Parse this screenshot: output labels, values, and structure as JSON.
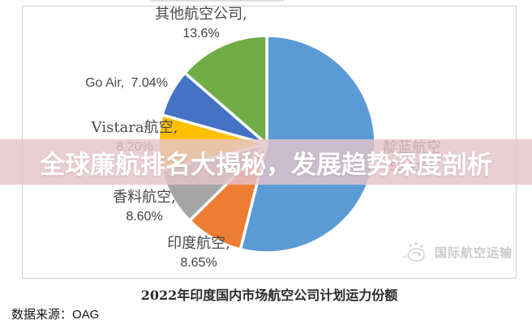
{
  "banner": {
    "text": "全球廉航排名大揭秘，发展趋势深度剖析",
    "bg_color": "#e4c4cb",
    "text_color": "#ffffff"
  },
  "chart_data": {
    "type": "pie",
    "title": "2022年印度国内市场航空公司计划运力份额",
    "source_label": "数据来源：OAG",
    "watermark": "国际航空运输",
    "start_angle_deg": 0,
    "direction": "clockwise",
    "labels_position": "outside",
    "legend": "none",
    "slices": [
      {
        "name": "靛蓝航空",
        "display_label": "靛蓝航空",
        "value": 53.91,
        "percent_label": "53.91%",
        "color": "#5B9BD5",
        "obscured_by_banner": true
      },
      {
        "name": "印度航空",
        "display_label": "印度航空,",
        "value": 8.65,
        "percent_label": "8.65%",
        "color": "#ED7D31"
      },
      {
        "name": "香料航空",
        "display_label": "香料航空,",
        "value": 8.6,
        "percent_label": "8.60%",
        "color": "#A5A5A5"
      },
      {
        "name": "Vistara航空",
        "display_label": "Vistara航空,",
        "value": 8.2,
        "percent_label": "8.20%",
        "color": "#FFC000"
      },
      {
        "name": "Go Air",
        "display_label": "Go Air,",
        "value": 7.04,
        "percent_label": "7.04%",
        "color": "#4472C4"
      },
      {
        "name": "其他航空公司",
        "display_label": "其他航空公司,",
        "value": 13.6,
        "percent_label": "13.6%",
        "color": "#70AD47"
      }
    ]
  }
}
